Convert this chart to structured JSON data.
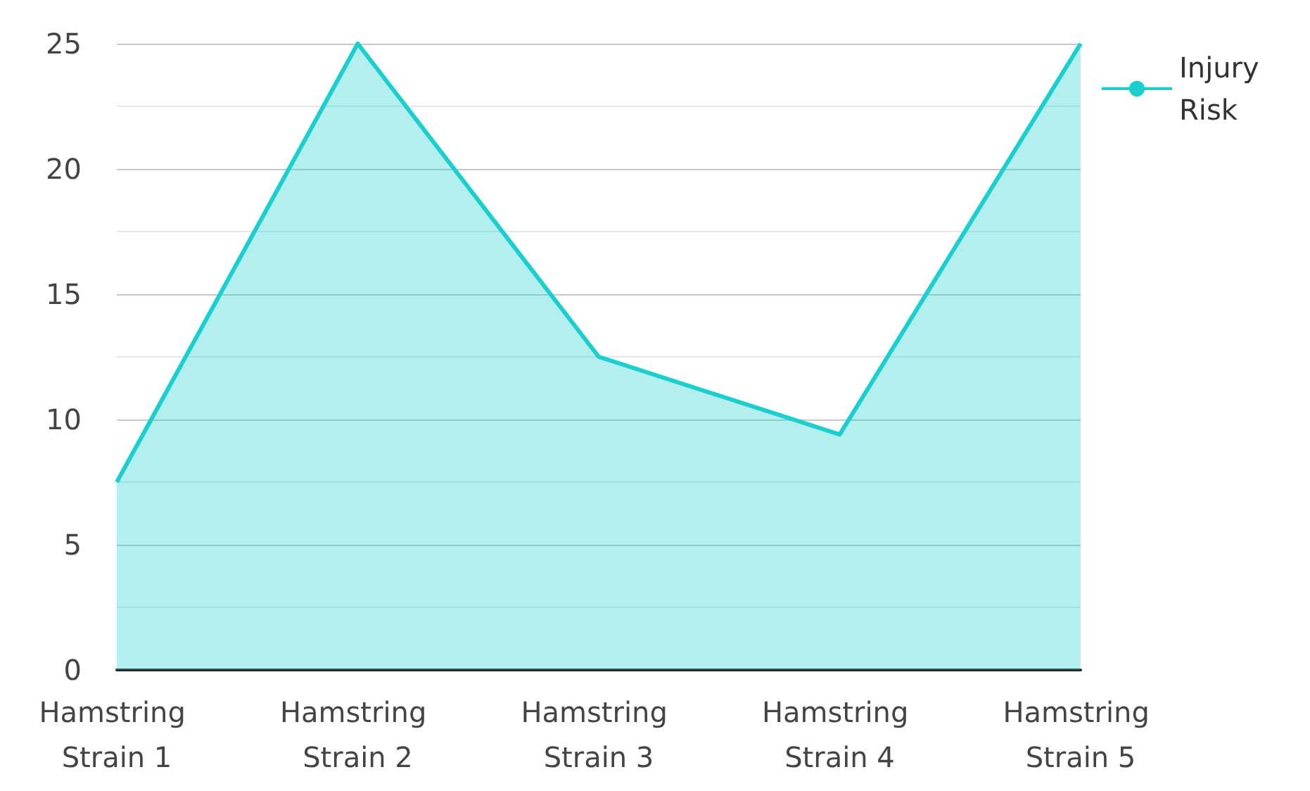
{
  "chart_data": {
    "type": "area",
    "categories": [
      "Hamstring Strain 1",
      "Hamstring Strain 2",
      "Hamstring Strain 3",
      "Hamstring Strain 4",
      "Hamstring Strain 5"
    ],
    "series": [
      {
        "name": "Injury Risk",
        "color": "#1ccfcf",
        "values": [
          7.5,
          25,
          12.5,
          9.4,
          25
        ]
      }
    ],
    "ylim": [
      0,
      25
    ],
    "yticks": [
      0,
      5,
      10,
      15,
      20,
      25
    ],
    "grid": "y",
    "legend": "top right",
    "marker": "none"
  }
}
